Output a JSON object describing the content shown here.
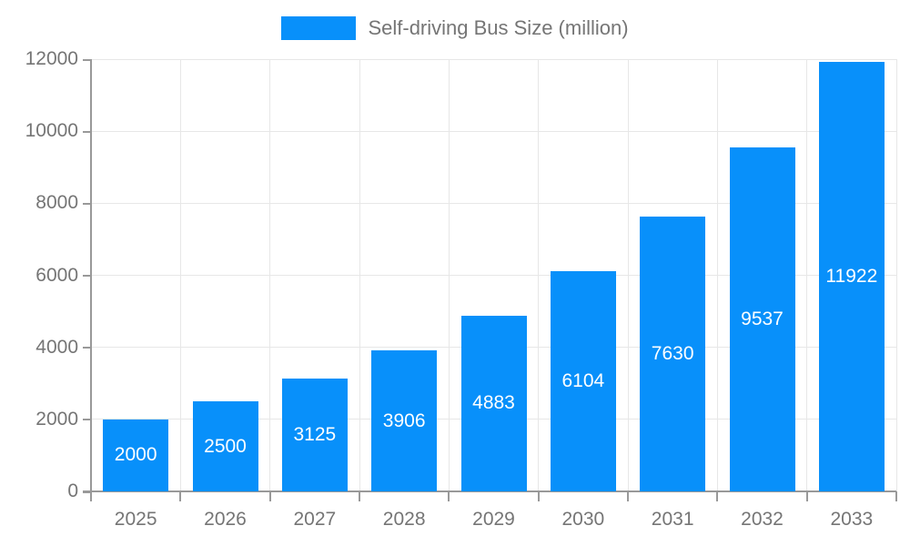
{
  "chart_data": {
    "type": "bar",
    "title": "Self-driving Bus Size (million)",
    "categories": [
      "2025",
      "2026",
      "2027",
      "2028",
      "2029",
      "2030",
      "2031",
      "2032",
      "2033"
    ],
    "values": [
      2000,
      2500,
      3125,
      3906,
      4883,
      6104,
      7630,
      9537,
      11922
    ],
    "xlabel": "",
    "ylabel": "",
    "ylim": [
      0,
      12000
    ],
    "yticks": [
      0,
      2000,
      4000,
      6000,
      8000,
      10000,
      12000
    ],
    "grid": true,
    "legend_position": "top-center",
    "colors": {
      "bar": "#0890fa",
      "grid": "#e7e7e7",
      "axis": "#999999",
      "text": "#757575",
      "value_label": "#ffffff"
    }
  }
}
